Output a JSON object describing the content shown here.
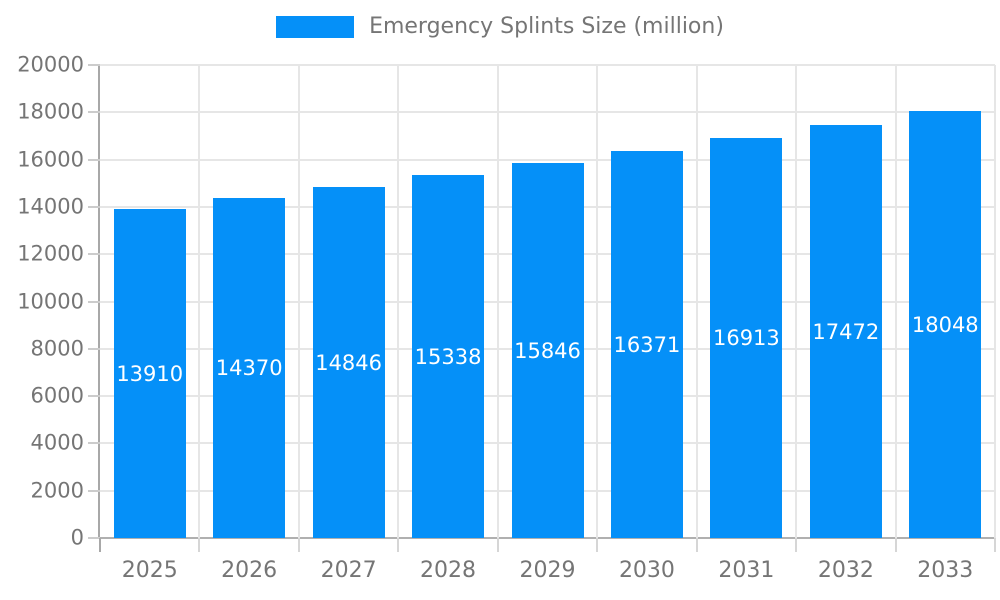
{
  "chart_data": {
    "type": "bar",
    "title": "",
    "legend": {
      "label": "Emergency Splints Size (million)",
      "position": "top"
    },
    "categories": [
      "2025",
      "2026",
      "2027",
      "2028",
      "2029",
      "2030",
      "2031",
      "2032",
      "2033"
    ],
    "values": [
      13910,
      14370,
      14846,
      15338,
      15846,
      16371,
      16913,
      17472,
      18048
    ],
    "xlabel": "",
    "ylabel": "",
    "ylim": [
      0,
      20000
    ],
    "ytick_step": 2000,
    "grid": true,
    "bar_label_position": "inside-center",
    "colors": {
      "bar": "#0590f8",
      "bar_label": "#ffffff",
      "axis_text": "#757575",
      "gridline": "#e6e6e6",
      "axis_line": "#a8a8a8",
      "background": "#ffffff"
    }
  }
}
